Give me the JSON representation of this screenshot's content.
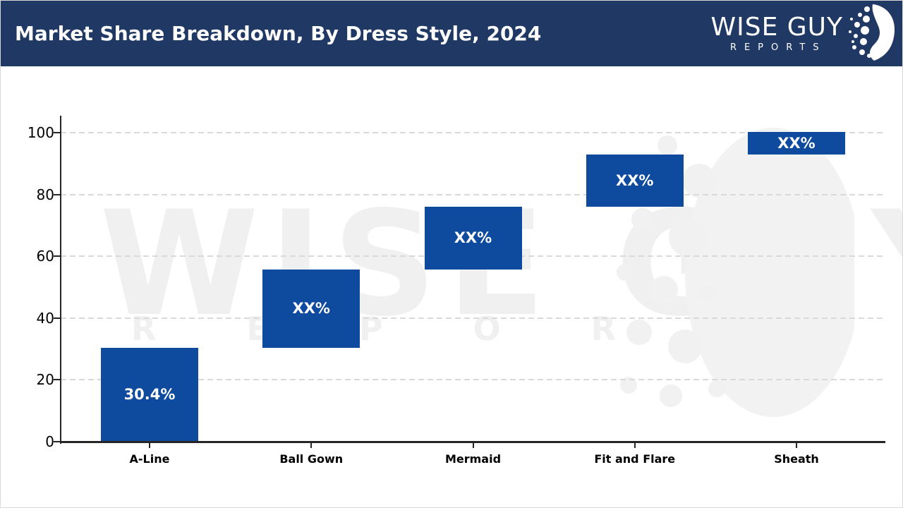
{
  "header": {
    "title": "Market Share Breakdown, By Dress Style, 2024",
    "logo": {
      "primary": "WISE GUY",
      "secondary": "REPORTS"
    }
  },
  "watermark": {
    "primary": "WISE GUY",
    "secondary": "R E P O R T S"
  },
  "chart_data": {
    "type": "bar",
    "subtype": "floating_waterfall_segments",
    "title": "Market Share Breakdown, By Dress Style, 2024",
    "categories": [
      "A-Line",
      "Ball Gown",
      "Mermaid",
      "Fit and Flare",
      "Sheath"
    ],
    "segments": [
      {
        "category": "A-Line",
        "start": 0,
        "end": 30.4,
        "label": "30.4%"
      },
      {
        "category": "Ball Gown",
        "start": 30.4,
        "end": 55.8,
        "label": "XX%"
      },
      {
        "category": "Mermaid",
        "start": 55.8,
        "end": 76.0,
        "label": "XX%"
      },
      {
        "category": "Fit and Flare",
        "start": 76.0,
        "end": 92.9,
        "label": "XX%"
      },
      {
        "category": "Sheath",
        "start": 92.9,
        "end": 100.2,
        "label": "XX%"
      }
    ],
    "yticks": [
      0,
      20,
      40,
      60,
      80,
      100
    ],
    "ylim": [
      0,
      105
    ],
    "xlabel": "",
    "ylabel": "",
    "grid": {
      "horizontal": true,
      "style": "dashed"
    },
    "legend": "none",
    "colors": {
      "bar": "#0e4a9e",
      "bar_label": "#ffffff",
      "header_bg": "#1f3864",
      "header_text": "#ffffff",
      "axis": "#262626",
      "grid": "#d9d9d9",
      "watermark": "#f0f0f1"
    }
  }
}
